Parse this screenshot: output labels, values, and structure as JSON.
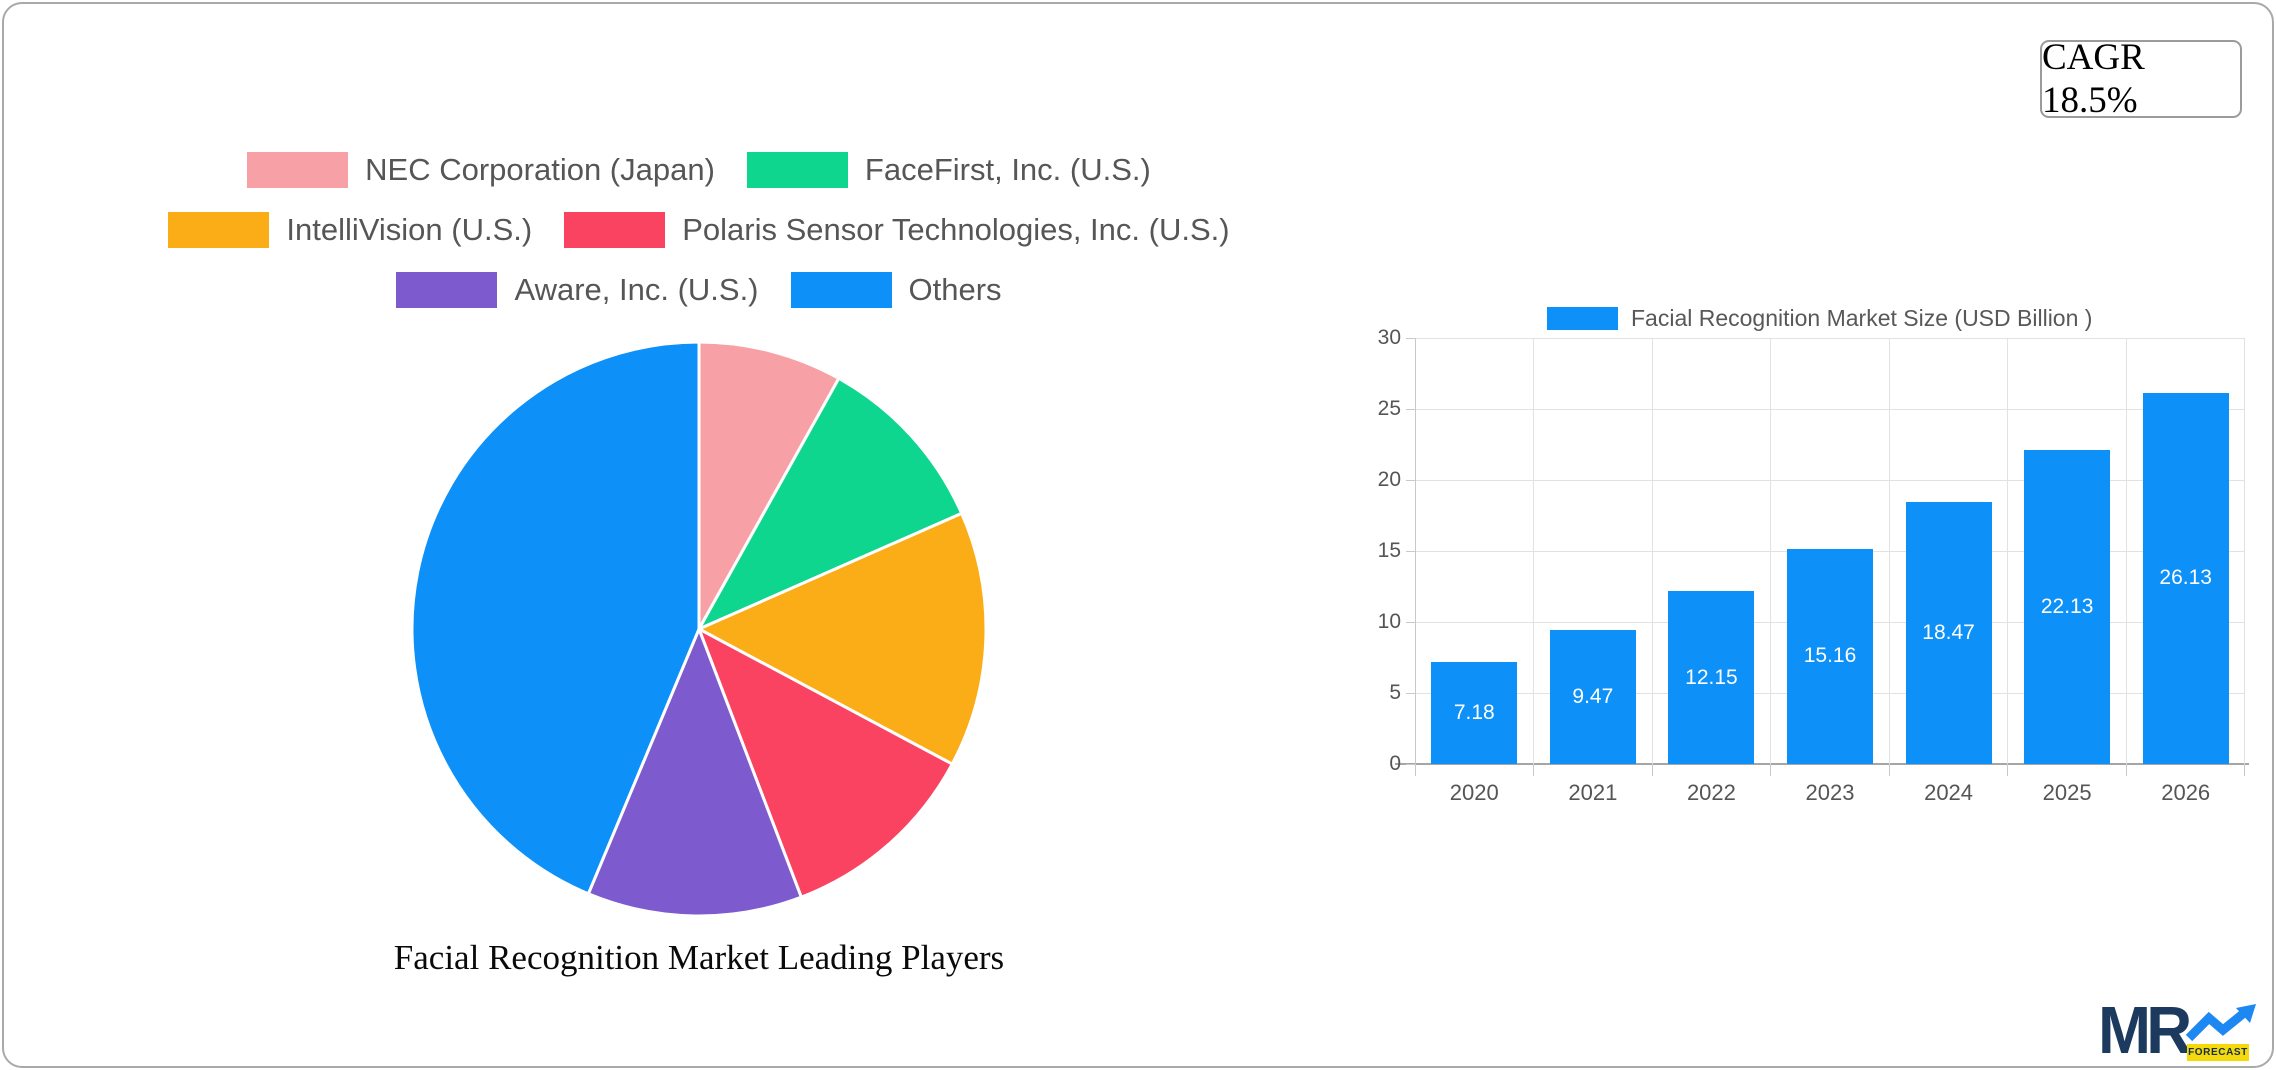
{
  "badge": {
    "cagr": "CAGR 18.5%"
  },
  "logo": {
    "text": "MR",
    "sub": "FORECAST"
  },
  "colors": {
    "blue": "#0d90f8",
    "pink": "#f7a1a7",
    "green": "#0fd68f",
    "orange": "#fbad18",
    "red": "#fa4261",
    "purple": "#7d5bce",
    "grid": "#e2e2e2",
    "axis_text": "#555555",
    "legend_text": "#565656"
  },
  "chart_data": [
    {
      "type": "pie",
      "title": "Facial Recognition Market Leading Players",
      "labels": [
        "NEC Corporation (Japan)",
        "FaceFirst, Inc. (U.S.)",
        "IntelliVision (U.S.)",
        "Polaris Sensor Technologies, Inc. (U.S.)",
        "Aware, Inc. (U.S.)",
        "Others"
      ],
      "values_pct": [
        8.1,
        10.3,
        14.4,
        11.4,
        12.1,
        43.7
      ],
      "colors": [
        "#f7a1a7",
        "#0fd68f",
        "#fbad18",
        "#fa4261",
        "#7d5bce",
        "#0d90f8"
      ],
      "start_angle_deg": 0,
      "direction": "clockwise",
      "legend_position": "top",
      "legend_rows": [
        [
          0,
          1
        ],
        [
          2,
          3
        ],
        [
          4,
          5
        ]
      ]
    },
    {
      "type": "bar",
      "legend_label": "Facial Recognition Market Size (USD Billion )",
      "categories": [
        "2020",
        "2021",
        "2022",
        "2023",
        "2024",
        "2025",
        "2026"
      ],
      "values": [
        7.18,
        9.47,
        12.15,
        15.16,
        18.47,
        22.13,
        26.13
      ],
      "bar_color": "#0d90f8",
      "value_label_color": "#ffffff",
      "ylim": [
        0,
        30
      ],
      "y_ticks": [
        0,
        5,
        10,
        15,
        20,
        25,
        30
      ],
      "grid": true,
      "legend_position": "top"
    }
  ]
}
